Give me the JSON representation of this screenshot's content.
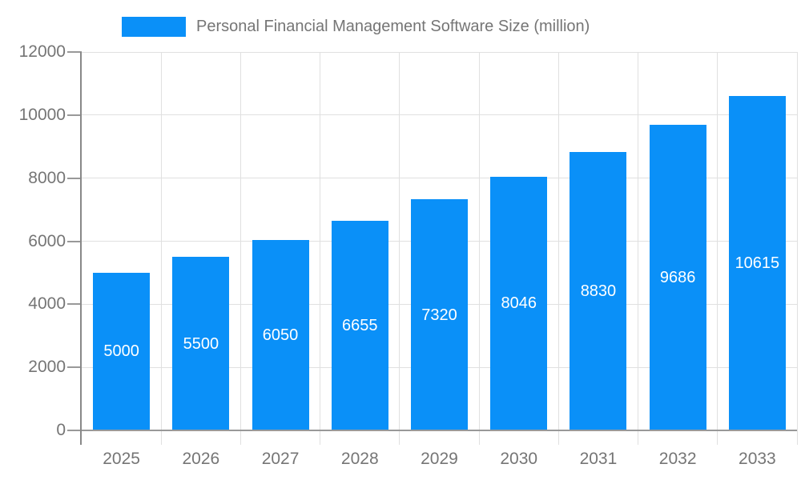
{
  "chart_data": {
    "type": "bar",
    "title": "Personal Financial Management Software Size (million)",
    "categories": [
      "2025",
      "2026",
      "2027",
      "2028",
      "2029",
      "2030",
      "2031",
      "2032",
      "2033"
    ],
    "values": [
      5000,
      5500,
      6050,
      6655,
      7320,
      8046,
      8830,
      9686,
      10615
    ],
    "series": [
      {
        "name": "Personal Financial Management Software Size (million)",
        "values": [
          5000,
          5500,
          6050,
          6655,
          7320,
          8046,
          8830,
          9686,
          10615
        ]
      }
    ],
    "xlabel": "",
    "ylabel": "",
    "ylim": [
      0,
      12000
    ],
    "ytick_labels": [
      "0",
      "2000",
      "4000",
      "6000",
      "8000",
      "10000",
      "12000"
    ],
    "ytick_values": [
      0,
      2000,
      4000,
      6000,
      8000,
      10000,
      12000
    ],
    "grid": "on",
    "legend_position": "top-center",
    "bar_value_labels_shown": true
  },
  "colors": {
    "bar": "#0a90f8",
    "bar_label_text": "#ffffff",
    "axis_text": "#757575",
    "y_axis_line": "#888888",
    "x_axis_line": "#999999",
    "tick": "#999999",
    "gridline": "#e0e0e0",
    "background": "#ffffff"
  }
}
